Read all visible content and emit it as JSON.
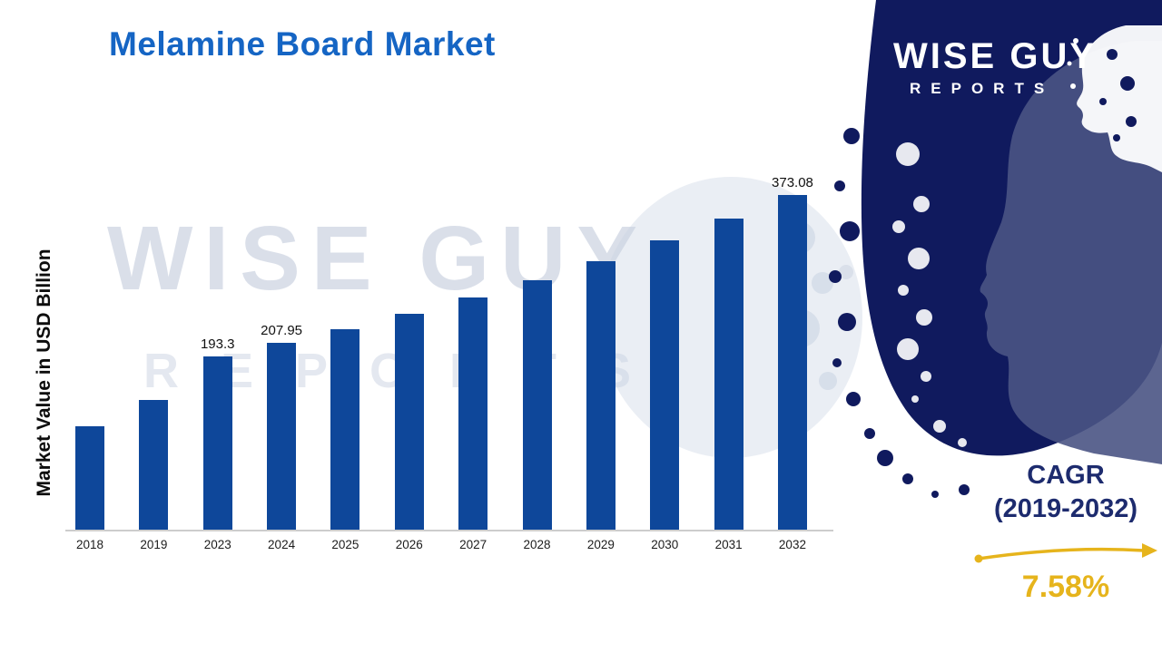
{
  "title": "Melamine Board Market",
  "ylabel": "Market Value in USD Billion",
  "watermark": {
    "line1": "WISE GUY",
    "line2": "REPORTS"
  },
  "logo": {
    "line1": "WISE GUY",
    "line2": "REPORTS"
  },
  "cagr": {
    "line1": "CAGR",
    "line2": "(2019-2032)",
    "value": "7.58%"
  },
  "colors": {
    "bar": "#0e479a",
    "title": "#1565c4",
    "panel_navy": "#101a5e",
    "face_silhouette": "#4a5484",
    "accent_yellow": "#e6b41c",
    "cagr_text": "#1d2b6e",
    "watermark": "#b6c1d5"
  },
  "chart_data": {
    "type": "bar",
    "title": "Melamine Board Market",
    "xlabel": "",
    "ylabel": "Market Value in USD Billion",
    "categories": [
      "2018",
      "2019",
      "2023",
      "2024",
      "2025",
      "2026",
      "2027",
      "2028",
      "2029",
      "2030",
      "2031",
      "2032"
    ],
    "values": [
      115,
      144.3,
      193.3,
      207.95,
      223.7,
      240.7,
      258.9,
      278.5,
      299.7,
      322.4,
      346.8,
      373.08
    ],
    "labels": {
      "2023": "193.3",
      "2024": "207.95",
      "2032": "373.08"
    },
    "units": "USD Billion",
    "ylim": [
      0,
      400
    ],
    "grid": false,
    "legend": false,
    "bar_color": "#0e479a"
  }
}
